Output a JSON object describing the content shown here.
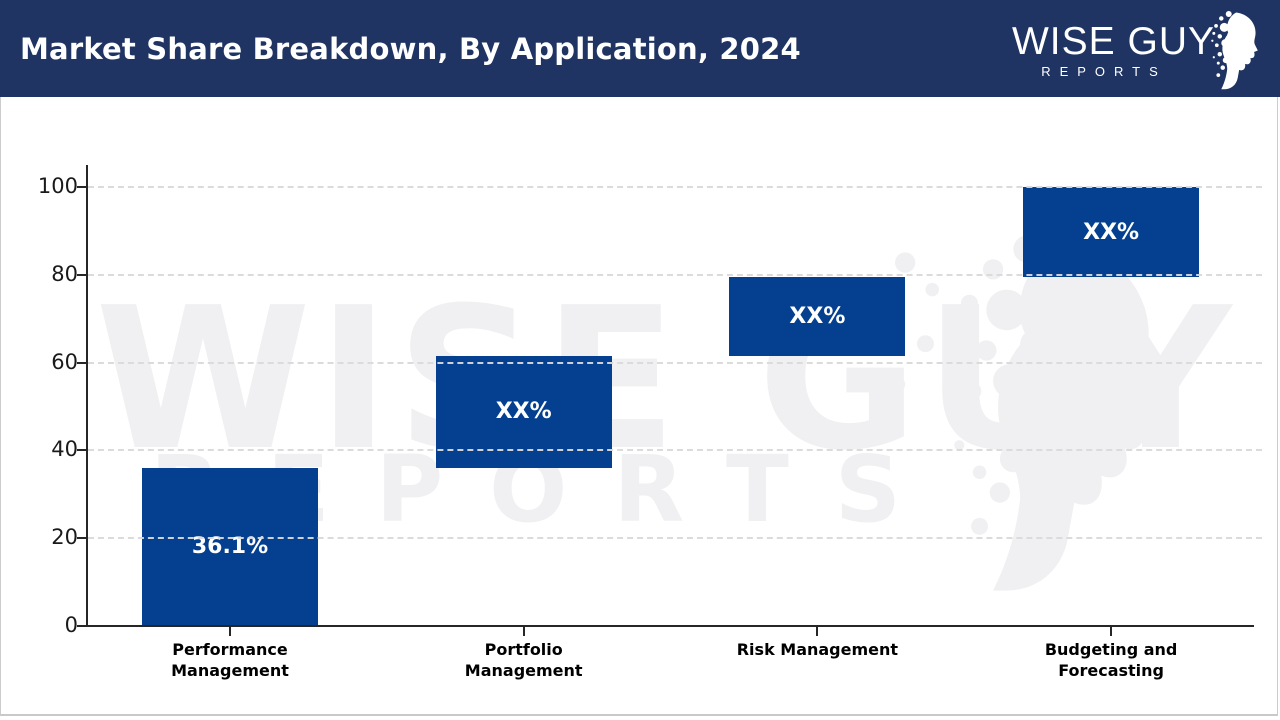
{
  "header": {
    "title": "Market Share Breakdown, By Application, 2024",
    "logo": {
      "line1": "WISE GUY",
      "line2": "REPORTS"
    }
  },
  "watermark": {
    "line1": "WISE GUY",
    "line2": "REPORTS"
  },
  "colors": {
    "header_bg": "#1f3462",
    "bar": "#04408f",
    "bar_label": "#ffffff",
    "grid": "#d9d9d9",
    "axis": "#262626",
    "watermark": "#f0f0f2"
  },
  "chart_data": {
    "type": "bar",
    "subtype": "waterfall",
    "title": "Market Share Breakdown, By Application, 2024",
    "xlabel": "",
    "ylabel": "",
    "ylim": [
      0,
      105
    ],
    "y_ticks": [
      0,
      20,
      40,
      60,
      80,
      100
    ],
    "grid": "horizontal dashed, drawn over bars",
    "legend": "none",
    "categories": [
      "Performance Management",
      "Portfolio Management",
      "Risk Management",
      "Budgeting and Forecasting"
    ],
    "segments": [
      {
        "category": "Performance Management",
        "start": 0,
        "end": 36.1,
        "value": 36.1,
        "label": "36.1%"
      },
      {
        "category": "Portfolio Management",
        "start": 36.1,
        "end": 61.4,
        "value": 25.3,
        "label": "XX%"
      },
      {
        "category": "Risk Management",
        "start": 61.4,
        "end": 79.4,
        "value": 18.0,
        "label": "XX%"
      },
      {
        "category": "Budgeting and Forecasting",
        "start": 79.4,
        "end": 100,
        "value": 20.6,
        "label": "XX%"
      }
    ]
  }
}
